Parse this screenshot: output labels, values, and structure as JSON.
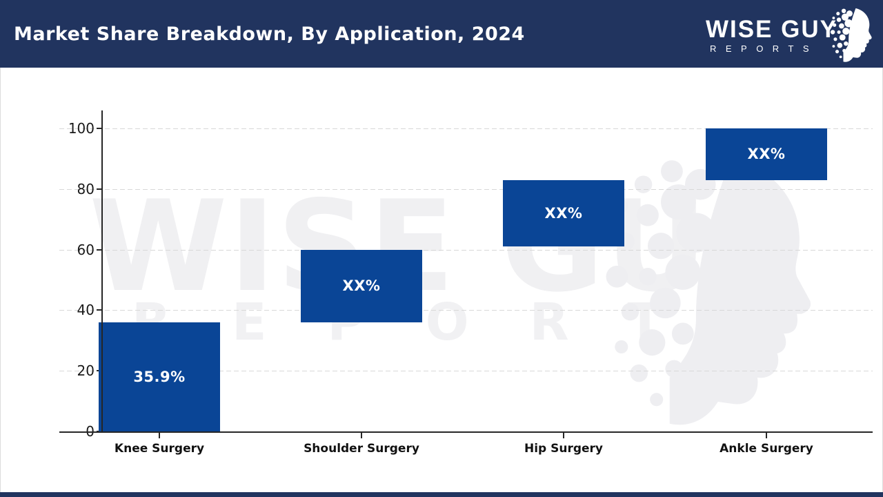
{
  "header": {
    "title": "Market Share Breakdown, By Application, 2024",
    "background": "#21345f",
    "logo": {
      "line1": "WISE GUY",
      "line2": "REPORTS"
    }
  },
  "watermark": {
    "line1": "WISE GU",
    "line2": "REPORTS"
  },
  "chart_data": {
    "type": "bar",
    "subtype": "waterfall-segments",
    "title": "Market Share Breakdown, By Application, 2024",
    "categories": [
      "Knee Surgery",
      "Shoulder Surgery",
      "Hip Surgery",
      "Ankle Surgery"
    ],
    "segments": [
      {
        "category": "Knee Surgery",
        "start": 0,
        "end": 35.9,
        "label": "35.9%"
      },
      {
        "category": "Shoulder Surgery",
        "start": 36,
        "end": 60,
        "label": "XX%"
      },
      {
        "category": "Hip Surgery",
        "start": 61,
        "end": 83,
        "label": "XX%"
      },
      {
        "category": "Ankle Surgery",
        "start": 83,
        "end": 100,
        "label": "XX%"
      }
    ],
    "xlabel": "",
    "ylabel": "",
    "ylim": [
      0,
      100
    ],
    "yticks": [
      0,
      20,
      40,
      60,
      80,
      100
    ],
    "grid": "horizontal-dashed",
    "legend": "none",
    "bar_color": "#0a4596",
    "bar_label_color": "#ffffff"
  }
}
